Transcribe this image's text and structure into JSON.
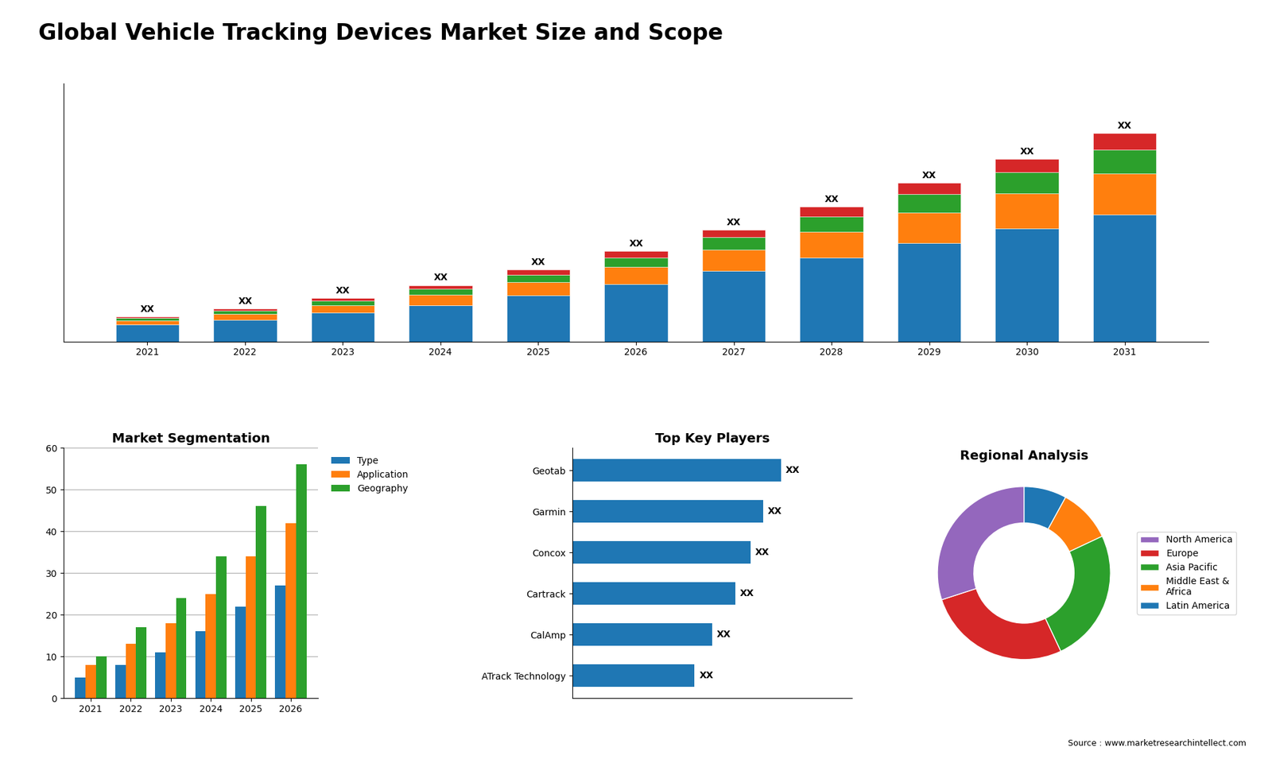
{
  "title": "Global Vehicle Tracking Devices Market Size and Scope",
  "source": "Source : www.marketresearchintellect.com",
  "chart_data": [
    {
      "type": "bar",
      "stacked": true,
      "categories": [
        "2021",
        "2022",
        "2023",
        "2024",
        "2025",
        "2026",
        "2027",
        "2028",
        "2029",
        "2030",
        "2031"
      ],
      "series": [
        {
          "values": [
            1.8,
            2.3,
            3.0,
            3.8,
            4.8,
            6.0,
            7.4,
            8.8,
            10.3,
            11.8,
            13.3
          ]
        },
        {
          "values": [
            0.4,
            0.6,
            0.8,
            1.1,
            1.4,
            1.8,
            2.2,
            2.7,
            3.2,
            3.7,
            4.3
          ]
        },
        {
          "values": [
            0.25,
            0.35,
            0.45,
            0.6,
            0.8,
            1.0,
            1.3,
            1.6,
            1.9,
            2.2,
            2.5
          ]
        },
        {
          "values": [
            0.15,
            0.2,
            0.3,
            0.4,
            0.5,
            0.65,
            0.8,
            1.0,
            1.2,
            1.4,
            1.7
          ],
          "value_labels": [
            "XX",
            "XX",
            "XX",
            "XX",
            "XX",
            "XX",
            "XX",
            "XX",
            "XX",
            "XX",
            "XX"
          ]
        }
      ],
      "ylim": [
        0,
        27
      ],
      "yticks": [],
      "tick_labels": "x"
    },
    {
      "type": "bar",
      "title": "Market Segmentation",
      "categories": [
        "2021",
        "2022",
        "2023",
        "2024",
        "2025",
        "2026"
      ],
      "series": [
        {
          "name": "Type",
          "values": [
            5,
            8,
            11,
            16,
            22,
            27
          ]
        },
        {
          "name": "Application",
          "values": [
            8,
            13,
            18,
            25,
            34,
            42
          ]
        },
        {
          "name": "Geography",
          "values": [
            10,
            17,
            24,
            34,
            46,
            56
          ]
        }
      ],
      "ylim": [
        0,
        60
      ],
      "yticks": [
        0,
        10,
        20,
        30,
        40,
        50,
        60
      ],
      "grid": true,
      "legend": "upper left"
    },
    {
      "type": "bar",
      "orientation": "horizontal",
      "title": "Top Key Players",
      "categories": [
        "Geotab",
        "Garmin",
        "Concox",
        "Cartrack",
        "CalAmp",
        "ATrack Technology"
      ],
      "values": [
        82,
        75,
        70,
        64,
        55,
        48
      ],
      "value_labels": [
        "XX",
        "XX",
        "XX",
        "XX",
        "XX",
        "XX"
      ],
      "xlim": [
        0,
        110
      ],
      "xticks": [],
      "tick_labels": "y"
    },
    {
      "type": "pie",
      "title": "Regional Analysis",
      "categories": [
        "Latin America",
        "Middle East &\nAfrica",
        "Asia Pacific",
        "Europe",
        "North America"
      ],
      "values": [
        8,
        10,
        25,
        27,
        30
      ],
      "legend": "center left"
    }
  ]
}
